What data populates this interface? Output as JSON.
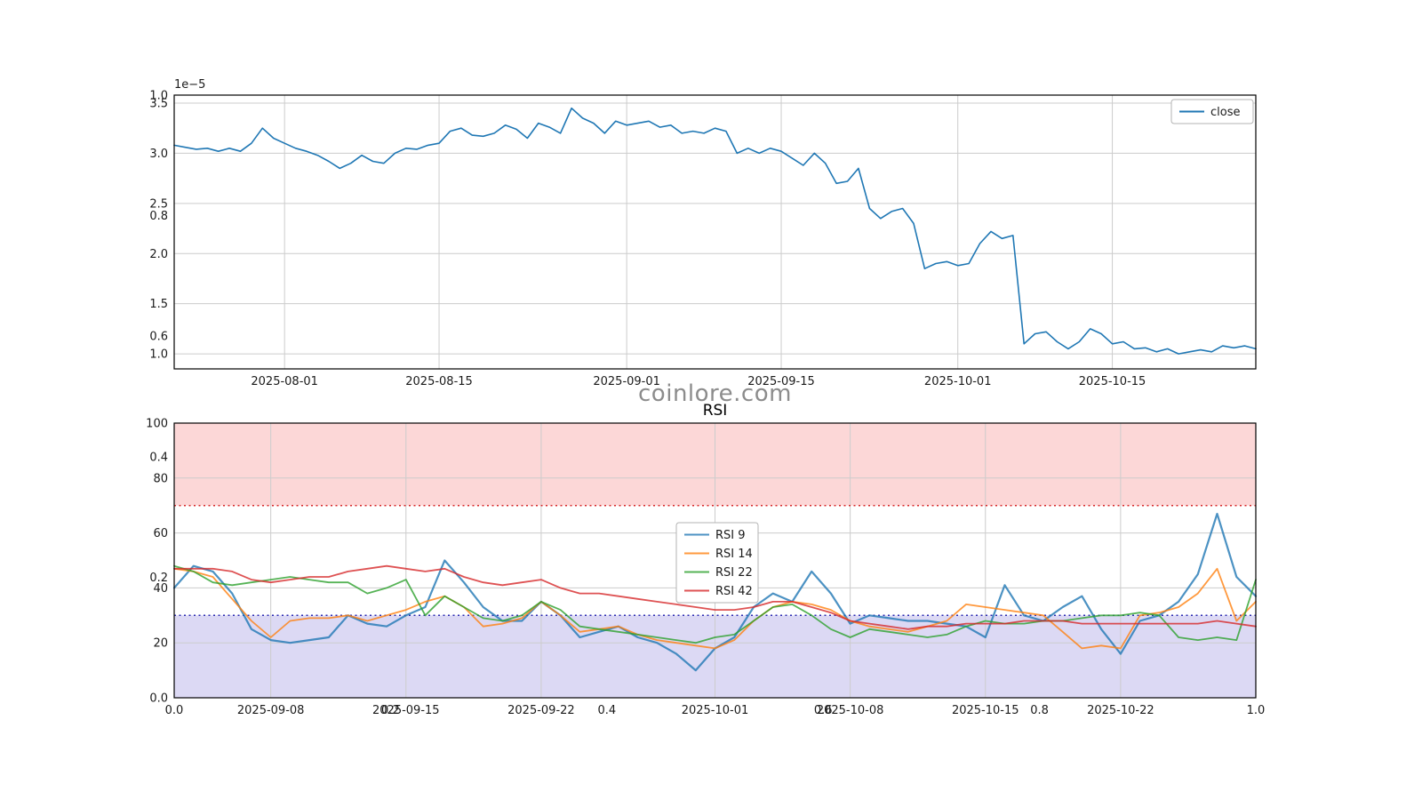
{
  "watermark": "coinlore.com",
  "colors": {
    "grid": "#cccccc",
    "axis": "#000000",
    "tick_text": "#1a1a1a",
    "watermark": "#8c8c8c",
    "legend_border": "#b3b3b3"
  },
  "overlay_axis": {
    "xticks": [
      "0.0",
      "0.2",
      "0.4",
      "0.6",
      "0.8",
      "1.0"
    ],
    "yticks": [
      "0.0",
      "0.2",
      "0.4",
      "0.6",
      "0.8",
      "1.0"
    ]
  },
  "chart_data": [
    {
      "id": "price",
      "type": "line",
      "title": "",
      "offset_label": "1e−5",
      "x_start": "2025-07-22",
      "x_end": "2025-10-28",
      "x_interval": "daily",
      "ylim": [
        0.85,
        3.58
      ],
      "ytick_values": [
        1.0,
        1.5,
        2.0,
        2.5,
        3.0,
        3.5
      ],
      "yticks": [
        "1.0",
        "1.5",
        "2.0",
        "2.5",
        "3.0",
        "3.5"
      ],
      "xticks": [
        "2025-08-01",
        "2025-08-15",
        "2025-09-01",
        "2025-09-15",
        "2025-10-01",
        "2025-10-15"
      ],
      "grid": true,
      "legend": [
        {
          "label": "close",
          "color": "#1f77b4",
          "opacity": 1
        }
      ],
      "series": [
        {
          "name": "close",
          "color": "#1f77b4",
          "width": 1.6,
          "opacity": 1,
          "values": [
            3.08,
            3.06,
            3.04,
            3.05,
            3.02,
            3.05,
            3.02,
            3.1,
            3.25,
            3.15,
            3.1,
            3.05,
            3.02,
            2.98,
            2.92,
            2.85,
            2.9,
            2.98,
            2.92,
            2.9,
            3.0,
            3.05,
            3.04,
            3.08,
            3.1,
            3.22,
            3.25,
            3.18,
            3.17,
            3.2,
            3.28,
            3.24,
            3.15,
            3.3,
            3.26,
            3.2,
            3.45,
            3.35,
            3.3,
            3.2,
            3.32,
            3.28,
            3.3,
            3.32,
            3.26,
            3.28,
            3.2,
            3.22,
            3.2,
            3.25,
            3.22,
            3.0,
            3.05,
            3.0,
            3.05,
            3.02,
            2.95,
            2.88,
            3.0,
            2.9,
            2.7,
            2.72,
            2.85,
            2.45,
            2.35,
            2.42,
            2.45,
            2.3,
            1.85,
            1.9,
            1.92,
            1.88,
            1.9,
            2.1,
            2.22,
            2.15,
            2.18,
            1.1,
            1.2,
            1.22,
            1.12,
            1.05,
            1.12,
            1.25,
            1.2,
            1.1,
            1.12,
            1.05,
            1.06,
            1.02,
            1.05,
            1.0,
            1.02,
            1.04,
            1.02,
            1.08,
            1.06,
            1.08,
            1.05
          ]
        }
      ]
    },
    {
      "id": "rsi",
      "type": "line",
      "title": "RSI",
      "x_start": "2025-09-03",
      "x_end": "2025-10-29",
      "x_interval": "daily",
      "ylim": [
        0,
        100
      ],
      "ytick_values": [
        20,
        40,
        60,
        80,
        100
      ],
      "yticks": [
        "20",
        "40",
        "60",
        "80",
        "100"
      ],
      "xticks": [
        "2025-09-08",
        "2025-09-15",
        "2025-09-22",
        "2025-10-01",
        "2025-10-08",
        "2025-10-15",
        "2025-10-22"
      ],
      "grid": true,
      "bands": [
        {
          "from": 70,
          "to": 100,
          "color": "#fcd7d7",
          "meaning": "overbought"
        },
        {
          "from": 0,
          "to": 30,
          "color": "#dcd9f4",
          "meaning": "oversold"
        }
      ],
      "hlines": [
        {
          "y": 70,
          "color": "#d62728",
          "style": "dotted"
        },
        {
          "y": 30,
          "color": "#2a2ab0",
          "style": "dotted"
        }
      ],
      "legend": [
        {
          "label": "RSI 9",
          "color": "#1f77b4",
          "opacity": 0.8
        },
        {
          "label": "RSI 14",
          "color": "#ff7f0e",
          "opacity": 0.8
        },
        {
          "label": "RSI 22",
          "color": "#2ca02c",
          "opacity": 0.8
        },
        {
          "label": "RSI 42",
          "color": "#d62728",
          "opacity": 0.8
        }
      ],
      "series": [
        {
          "name": "RSI 9",
          "color": "#1f77b4",
          "width": 2.2,
          "opacity": 0.8,
          "values": [
            40,
            48,
            46,
            38,
            25,
            21,
            20,
            21,
            22,
            30,
            27,
            26,
            30,
            33,
            50,
            42,
            33,
            28,
            28,
            35,
            30,
            22,
            24,
            26,
            22,
            20,
            16,
            10,
            18,
            22,
            33,
            38,
            35,
            46,
            38,
            27,
            30,
            29,
            28,
            28,
            27,
            26,
            22,
            41,
            30,
            28,
            33,
            37,
            25,
            16,
            28,
            30,
            35,
            45,
            67,
            44,
            37
          ]
        },
        {
          "name": "RSI 14",
          "color": "#ff7f0e",
          "width": 1.8,
          "opacity": 0.8,
          "values": [
            47,
            46,
            44,
            36,
            28,
            22,
            28,
            29,
            29,
            30,
            28,
            30,
            32,
            35,
            37,
            33,
            26,
            27,
            29,
            35,
            30,
            24,
            25,
            26,
            23,
            21,
            20,
            19,
            18,
            21,
            28,
            33,
            35,
            34,
            32,
            28,
            26,
            25,
            24,
            26,
            28,
            34,
            33,
            32,
            31,
            30,
            24,
            18,
            19,
            18,
            30,
            31,
            33,
            38,
            47,
            28,
            35
          ]
        },
        {
          "name": "RSI 22",
          "color": "#2ca02c",
          "width": 1.8,
          "opacity": 0.8,
          "values": [
            48,
            46,
            42,
            41,
            42,
            43,
            44,
            43,
            42,
            42,
            38,
            40,
            43,
            30,
            37,
            33,
            29,
            28,
            30,
            35,
            32,
            26,
            25,
            24,
            23,
            22,
            21,
            20,
            22,
            23,
            28,
            33,
            34,
            30,
            25,
            22,
            25,
            24,
            23,
            22,
            23,
            26,
            28,
            27,
            27,
            28,
            28,
            29,
            30,
            30,
            31,
            30,
            22,
            21,
            22,
            21,
            43
          ]
        },
        {
          "name": "RSI 42",
          "color": "#d62728",
          "width": 1.8,
          "opacity": 0.8,
          "values": [
            47,
            47,
            47,
            46,
            43,
            42,
            43,
            44,
            44,
            46,
            47,
            48,
            47,
            46,
            47,
            44,
            42,
            41,
            42,
            43,
            40,
            38,
            38,
            37,
            36,
            35,
            34,
            33,
            32,
            32,
            33,
            35,
            35,
            33,
            31,
            28,
            27,
            26,
            25,
            26,
            26,
            27,
            27,
            27,
            28,
            28,
            28,
            27,
            27,
            27,
            27,
            27,
            27,
            27,
            28,
            27,
            26
          ]
        }
      ]
    }
  ]
}
